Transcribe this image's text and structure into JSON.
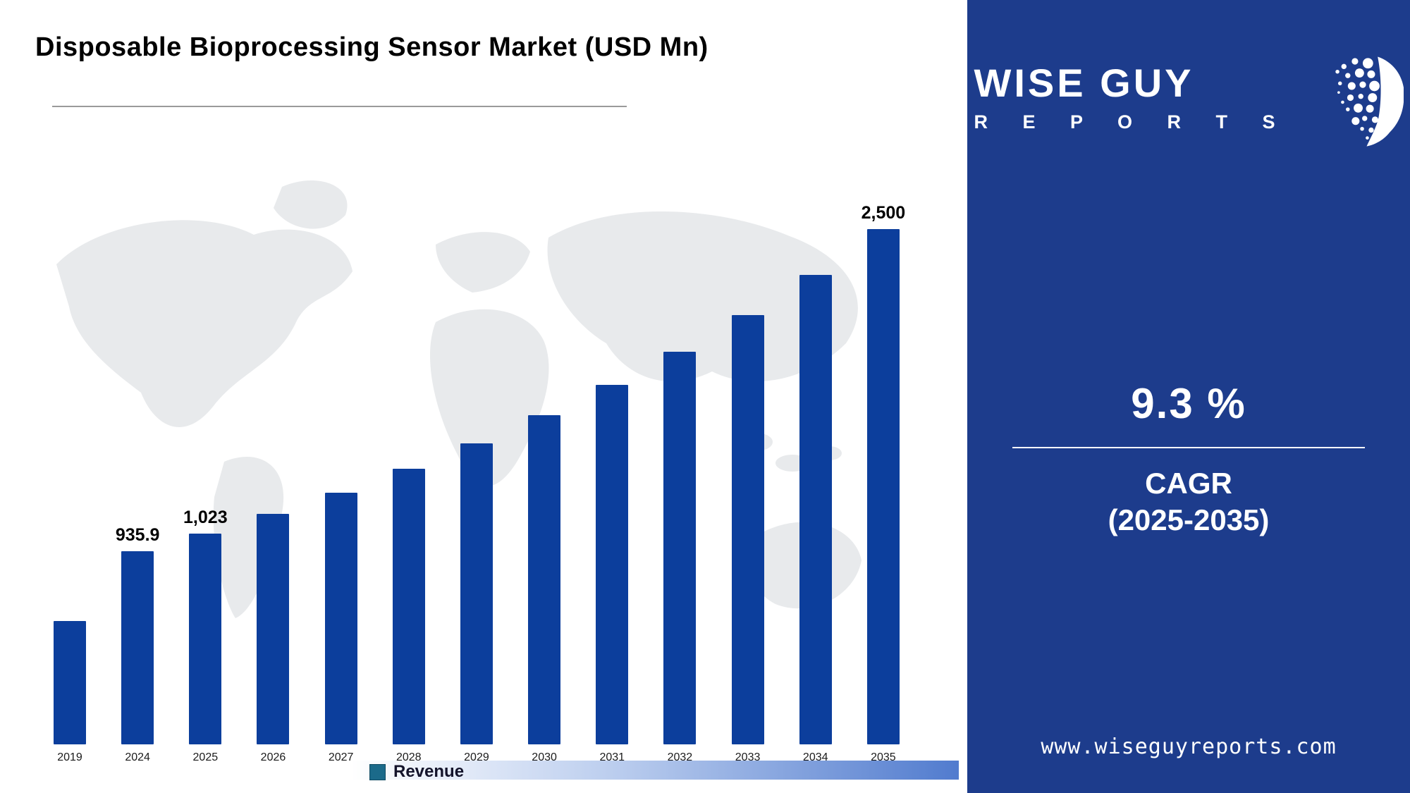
{
  "chart_data": {
    "type": "bar",
    "title": "Disposable Bioprocessing Sensor Market (USD Mn)",
    "categories": [
      "2019",
      "2024",
      "2025",
      "2026",
      "2027",
      "2028",
      "2029",
      "2030",
      "2031",
      "2032",
      "2033",
      "2034",
      "2035"
    ],
    "values": [
      600,
      935.9,
      1023,
      1118,
      1222,
      1336,
      1460,
      1596,
      1744,
      1906,
      2083,
      2277,
      2500
    ],
    "data_labels": [
      "",
      "935.9",
      "1,023",
      "",
      "",
      "",
      "",
      "",
      "",
      "",
      "",
      "",
      "2,500"
    ],
    "xlabel": "",
    "ylabel": "",
    "ylim": [
      0,
      2600
    ],
    "grid": false,
    "legend": [
      "Revenue"
    ],
    "legend_position": "bottom",
    "bar_color": "#0c3e9c",
    "legend_swatch_color": "#1b6a8a"
  },
  "sidebar": {
    "logo_line1": "WISE GUY",
    "logo_line2": "R E P O R T S",
    "cagr_value": "9.3 %",
    "cagr_line1": "CAGR",
    "cagr_line2": "(2025-2035)",
    "website": "www.wiseguyreports.com",
    "bg_color": "#1d3c8c"
  }
}
